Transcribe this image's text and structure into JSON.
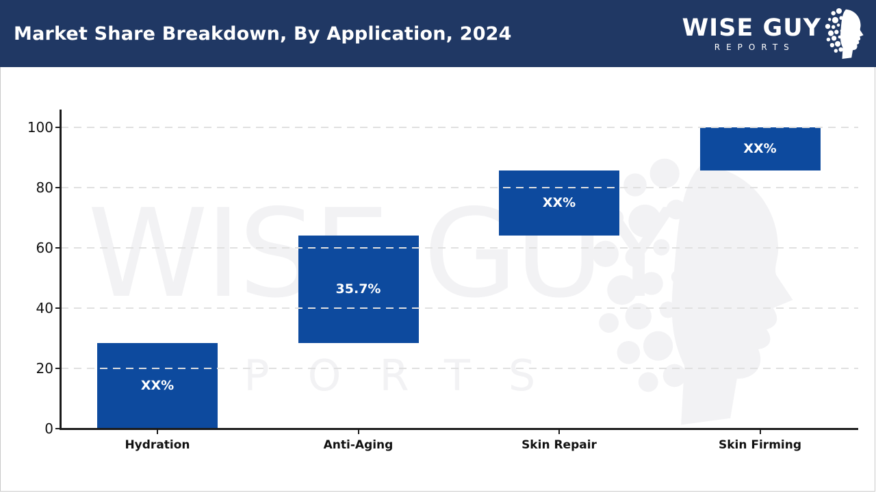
{
  "header": {
    "title": "Market Share Breakdown, By Application, 2024",
    "logo_line1": "WISE GUY",
    "logo_line2": "REPORTS"
  },
  "watermark": {
    "line1": "WISE GUY",
    "line2": "REPORTS"
  },
  "colors": {
    "header_bg": "#203864",
    "bar_blue": "#0d4a9e",
    "watermark_gray": "#f2f2f4",
    "grid_gray": "#e0e0e0",
    "axis_black": "#1a1a1a"
  },
  "chart_data": {
    "type": "bar",
    "subtype": "waterfall-floating-bars",
    "title": "Market Share Breakdown, By Application, 2024",
    "categories": [
      "Hydration",
      "Anti-Aging",
      "Skin Repair",
      "Skin Firming"
    ],
    "segments": [
      {
        "category": "Hydration",
        "start": 0,
        "end": 28.5,
        "label": "XX%"
      },
      {
        "category": "Anti-Aging",
        "start": 28.5,
        "end": 64.2,
        "label": "35.7%"
      },
      {
        "category": "Skin Repair",
        "start": 64.2,
        "end": 85.7,
        "label": "XX%"
      },
      {
        "category": "Skin Firming",
        "start": 85.7,
        "end": 100,
        "label": "XX%"
      }
    ],
    "xlabel": "",
    "ylabel": "",
    "ylim": [
      0,
      100
    ],
    "y_ticks": [
      0,
      20,
      40,
      60,
      80,
      100
    ],
    "grid": "horizontal-dashed",
    "legend": "none",
    "bar_color": "#0d4a9e"
  }
}
